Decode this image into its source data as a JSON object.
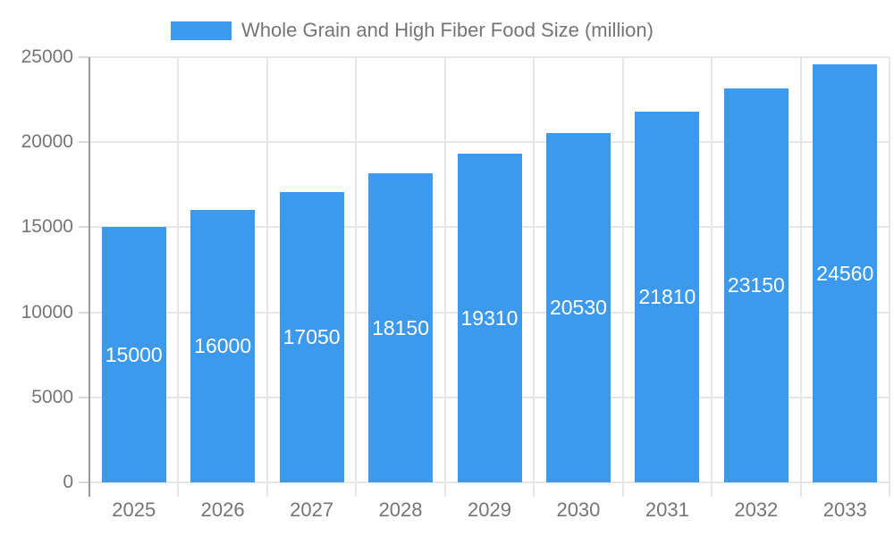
{
  "chart_data": {
    "type": "bar",
    "title": "Whole Grain and High Fiber Food Size (million)",
    "categories": [
      "2025",
      "2026",
      "2027",
      "2028",
      "2029",
      "2030",
      "2031",
      "2032",
      "2033"
    ],
    "values": [
      15000,
      16000,
      17050,
      18150,
      19310,
      20530,
      21810,
      23150,
      24560
    ],
    "series_name": "Whole Grain and High Fiber Food Size (million)",
    "xlabel": "",
    "ylabel": "",
    "ylim": [
      0,
      25000
    ],
    "yticks": [
      0,
      5000,
      10000,
      15000,
      20000,
      25000
    ],
    "grid": true,
    "legend_position": "top",
    "data_labels": "inside-center"
  },
  "colors": {
    "bar": "#3d99ec",
    "grid": "#e6e6e6",
    "axis": "#999999",
    "tick": "#d9d9d9",
    "axis_text": "#757575",
    "bar_label_text": "#ffffff",
    "background": "#ffffff"
  }
}
